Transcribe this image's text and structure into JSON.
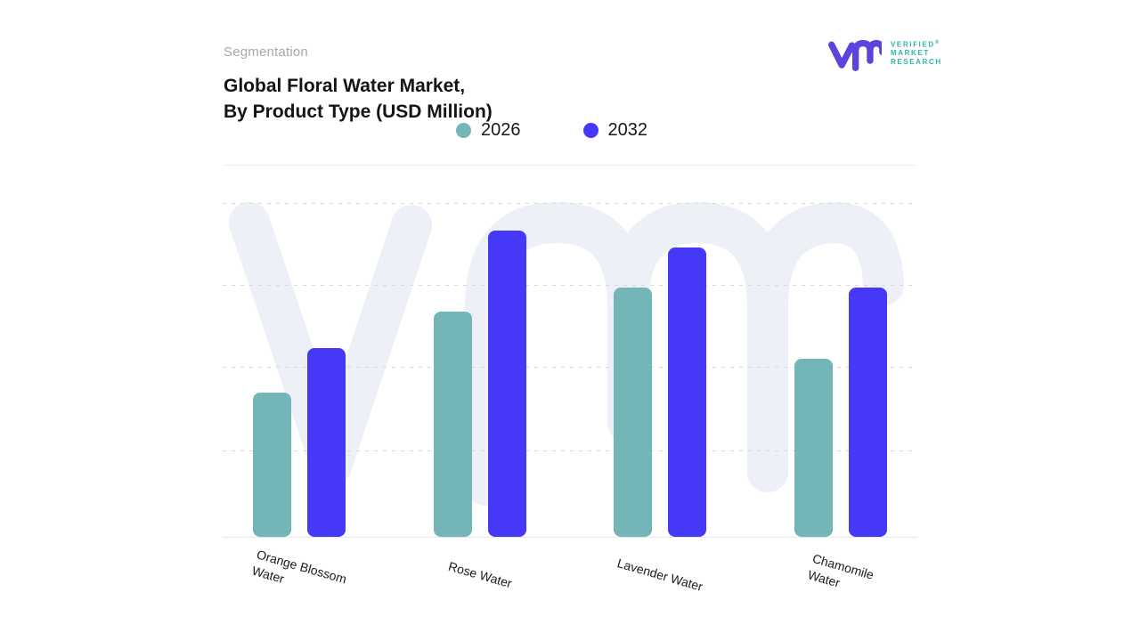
{
  "header": {
    "eyebrow": "Segmentation",
    "title_line1": "Global Floral Water Market,",
    "title_line2": "By Product Type (USD Million)"
  },
  "logo": {
    "line1": "VERIFIED",
    "line2": "MARKET",
    "line3": "RESEARCH",
    "registered_mark": "®",
    "monogram_color": "#5b43dd",
    "text_color": "#2fb4ae"
  },
  "legend": [
    {
      "label": "2026",
      "color": "#74b5b7"
    },
    {
      "label": "2032",
      "color": "#4638f7"
    }
  ],
  "chart_data": {
    "type": "bar",
    "title": "Global Floral Water Market, By Product Type (USD Million)",
    "subtitle": "Segmentation",
    "categories": [
      "Orange Blossom Water",
      "Rose Water",
      "Lavender Water",
      "Chamomile Water"
    ],
    "x_axis_label_lines": [
      [
        "Orange Blossom",
        "Water"
      ],
      [
        "Rose Water"
      ],
      [
        "Lavender Water"
      ],
      [
        "Chamomile",
        "Water"
      ]
    ],
    "series": [
      {
        "name": "2026",
        "color": "#74b5b7",
        "values": [
          43,
          67,
          74,
          53
        ]
      },
      {
        "name": "2032",
        "color": "#4638f7",
        "values": [
          56,
          91,
          86,
          74
        ]
      }
    ],
    "xlabel": "",
    "ylabel": "",
    "ylim": [
      0,
      100
    ],
    "value_units": "relative bar height, % of plot area (no numeric y-axis shown)",
    "grid": "dashed horizontal gridlines",
    "legend_position": "top"
  }
}
